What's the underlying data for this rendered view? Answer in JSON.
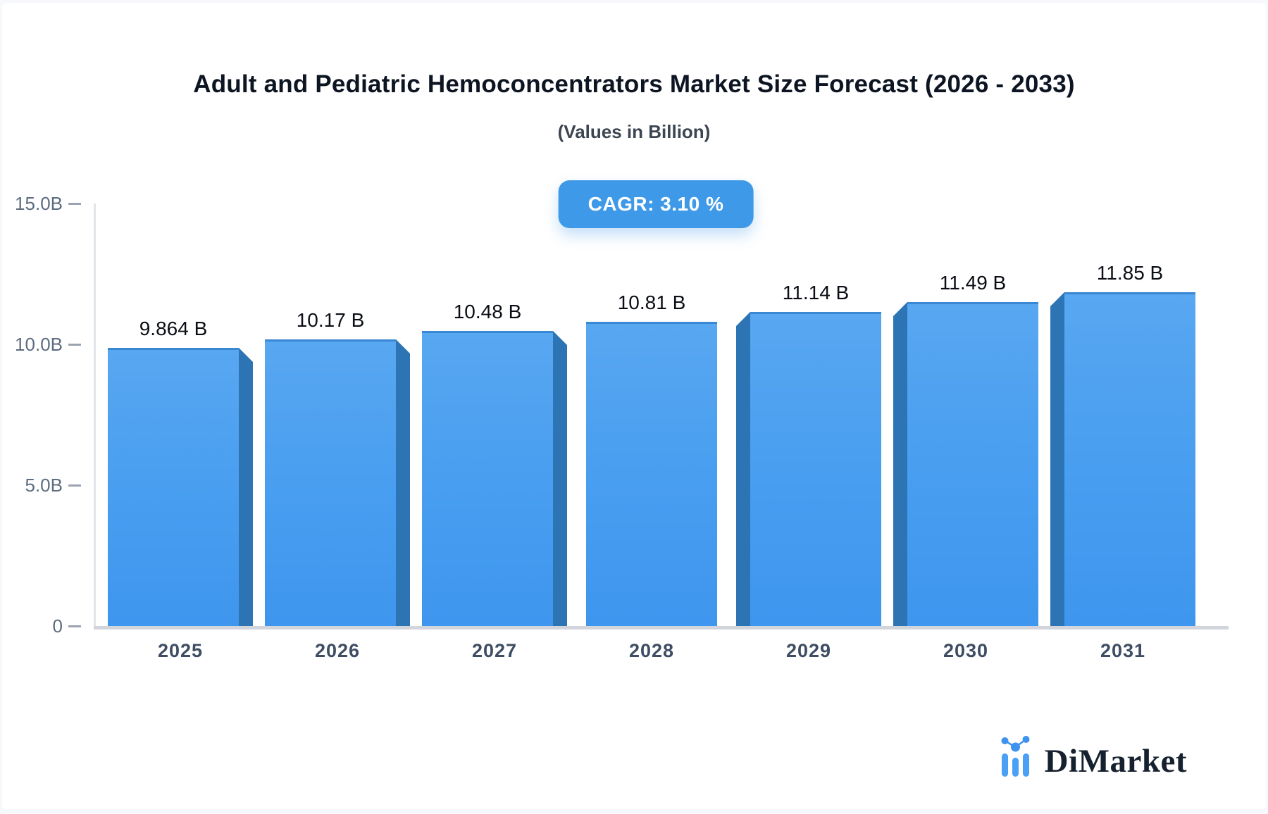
{
  "page": {
    "background": "#f7f8fb",
    "card_background": "#ffffff"
  },
  "header": {
    "title": "Adult and Pediatric Hemoconcentrators Market Size Forecast (2026 - 2033)",
    "subtitle": "(Values in Billion)"
  },
  "cagr_badge": {
    "label": "CAGR: 3.10 %",
    "background": "#3f99e9",
    "text_color": "#ffffff"
  },
  "chart_data": {
    "type": "bar",
    "title": "Adult and Pediatric Hemoconcentrators Market Size Forecast (2026 - 2033)",
    "subtitle": "(Values in Billion)",
    "categories": [
      "2025",
      "2026",
      "2027",
      "2028",
      "2029",
      "2030",
      "2031"
    ],
    "values": [
      9.864,
      10.17,
      10.48,
      10.81,
      11.14,
      11.49,
      11.85
    ],
    "value_labels": [
      "9.864 B",
      "10.17 B",
      "10.48 B",
      "10.81 B",
      "11.14 B",
      "11.49 B",
      "11.85 B"
    ],
    "unit": "Billion",
    "cagr": "3.10 %",
    "ylim": [
      0,
      15
    ],
    "yticks": [
      {
        "label": "15.0B",
        "value": 15
      },
      {
        "label": "10.0B",
        "value": 10
      },
      {
        "label": "5.0B",
        "value": 5
      },
      {
        "label": "0",
        "value": 0
      }
    ],
    "grid": false,
    "legend": "none",
    "bar_face_color_top": "#58a7f1",
    "bar_face_color_bottom": "#3e96ee",
    "bar_side_color": "#2d74b4",
    "bar_top_edge_color": "#3a87d3",
    "axis_color": "#d2d6dc"
  },
  "logo": {
    "text": "DiMarket",
    "icon": "bar-line-chart-icon",
    "text_color": "#16212f",
    "icon_color": "#4aa0f5"
  }
}
